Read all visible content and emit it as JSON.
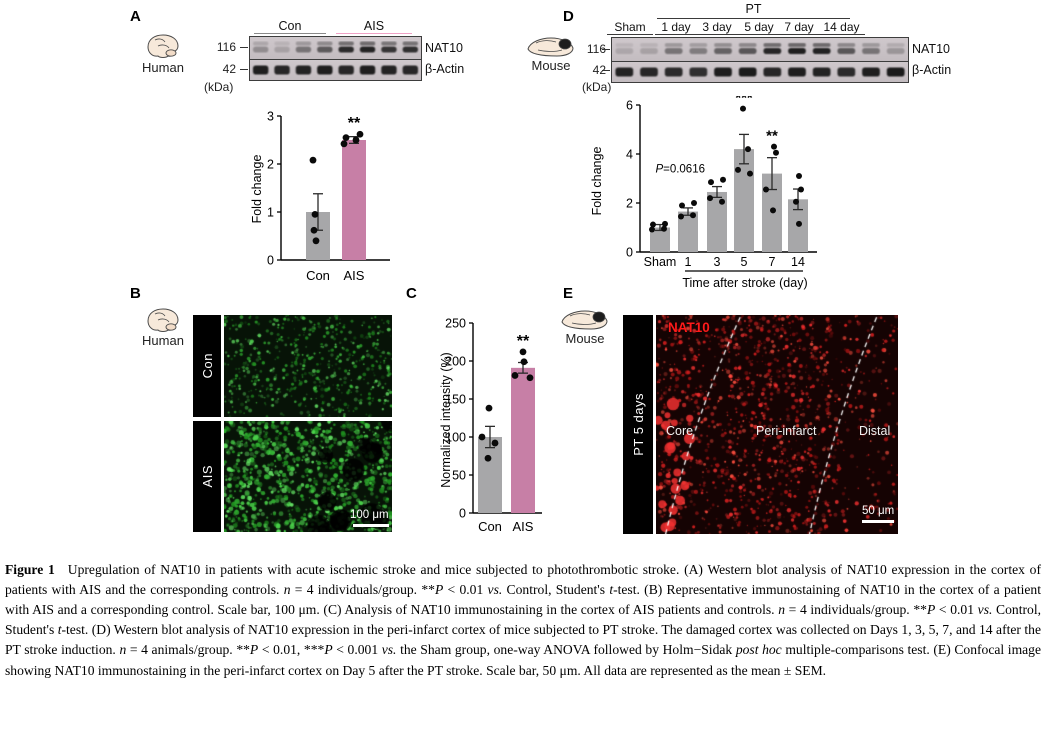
{
  "figure": {
    "panels": {
      "a": {
        "label": "A",
        "species": "Human",
        "blot": {
          "groups": [
            "Con",
            "AIS"
          ],
          "mw": [
            "116",
            "42"
          ],
          "kda": "(kDa)",
          "targets": [
            "NAT10",
            "β-Actin"
          ],
          "nat10_intensities": [
            0.3,
            0.18,
            0.45,
            0.6,
            0.88,
            0.92,
            0.82,
            0.85
          ],
          "actin_intensities": [
            0.95,
            0.9,
            0.92,
            0.95,
            0.9,
            0.95,
            0.92,
            0.9
          ]
        }
      },
      "b": {
        "label": "B",
        "species": "Human",
        "rows": [
          "Con",
          "AIS"
        ],
        "scale_bar": "100 μm",
        "if_bg": "#071307",
        "if_dot_colors": [
          "#2fae2f",
          "#49d049",
          "#1f8f1f",
          "#63e063"
        ]
      },
      "c": {
        "label": "C"
      },
      "d": {
        "label": "D",
        "species": "Mouse",
        "blot": {
          "bracket": "PT",
          "lanes": [
            "Sham",
            "1 day",
            "3 day",
            "5 day",
            "7 day",
            "14 day"
          ],
          "mw": [
            "116",
            "42"
          ],
          "kda": "(kDa)",
          "targets": [
            "NAT10",
            "β-Actin"
          ],
          "nat10_intensities": [
            0.15,
            0.18,
            0.45,
            0.4,
            0.55,
            0.62,
            0.9,
            0.95,
            0.93,
            0.62,
            0.45,
            0.25
          ],
          "actin_intensities": [
            0.92,
            0.9,
            0.88,
            0.85,
            0.95,
            0.97,
            0.9,
            0.95,
            0.92,
            0.88,
            0.95,
            0.97
          ]
        }
      },
      "e": {
        "label": "E",
        "species": "Mouse",
        "row_label": "PT 5 days",
        "stain_label": "NAT10",
        "stain_color": "#ff1a1a",
        "regions": [
          "Core",
          "Peri-infarct",
          "Distal"
        ],
        "scale_bar": "50 μm",
        "if_bg": "#150303",
        "if_dot_colors": [
          "#d61f1f",
          "#f03030",
          "#a81414",
          "#ff5040"
        ]
      }
    },
    "caption": {
      "segments": [
        {
          "t": "Figure 1",
          "b": 1
        },
        {
          "t": "Upregulation of NAT10 in patients with acute ischemic stroke and mice subjected to photothrombotic stroke. (A) Western blot analysis of NAT10 expression in the cortex of patients with AIS and the corresponding controls. "
        },
        {
          "t": "n",
          "i": 1
        },
        {
          "t": " = 4 individuals/group. **"
        },
        {
          "t": "P",
          "i": 1
        },
        {
          "t": " < 0.01 "
        },
        {
          "t": "vs.",
          "i": 1
        },
        {
          "t": " Control, Student's "
        },
        {
          "t": "t",
          "i": 1
        },
        {
          "t": "-test. (B) Representative immunostaining of NAT10 in the cortex of a patient with AIS and a corresponding control. Scale bar, 100 μm. (C) Analysis of NAT10 immunostaining in the cortex of AIS patients and controls. "
        },
        {
          "t": "n",
          "i": 1
        },
        {
          "t": " = 4 individuals/group. **"
        },
        {
          "t": "P",
          "i": 1
        },
        {
          "t": " < 0.01 "
        },
        {
          "t": "vs.",
          "i": 1
        },
        {
          "t": " Control, Student's "
        },
        {
          "t": "t",
          "i": 1
        },
        {
          "t": "-test. (D) Western blot analysis of NAT10 expression in the peri-infarct cortex of mice subjected to PT stroke. The damaged cortex was collected on Days 1, 3, 5, 7, and 14 after the PT stroke induction. "
        },
        {
          "t": "n",
          "i": 1
        },
        {
          "t": " = 4 animals/group. **"
        },
        {
          "t": "P",
          "i": 1
        },
        {
          "t": " < 0.01, ***"
        },
        {
          "t": "P",
          "i": 1
        },
        {
          "t": " < 0.001 "
        },
        {
          "t": "vs.",
          "i": 1
        },
        {
          "t": " the Sham group, one-way ANOVA followed by Holm−Sidak "
        },
        {
          "t": "post hoc",
          "i": 1
        },
        {
          "t": " multiple-comparisons test. (E) Confocal image showing NAT10 immunostaining in the peri-infarct cortex on Day 5 after the PT stroke. Scale bar, 50 μm. All data are represented as the mean ± SEM."
        }
      ]
    }
  },
  "chart_data": [
    {
      "id": "chart-a",
      "type": "bar",
      "title": "",
      "categories": [
        "Con",
        "AIS"
      ],
      "values": [
        1.0,
        2.5
      ],
      "errors": [
        0.38,
        0.07
      ],
      "points": [
        [
          2.08,
          0.95,
          0.62,
          0.4
        ],
        [
          2.55,
          2.62,
          2.42,
          2.5
        ]
      ],
      "sig": [
        "",
        "**"
      ],
      "xlabel": "",
      "ylabel": "Fold change",
      "ylim": [
        0,
        3
      ],
      "yticks": [
        0,
        1,
        2,
        3
      ],
      "bar_colors": [
        "#a7a7a9",
        "#c77fa6"
      ]
    },
    {
      "id": "chart-c",
      "type": "bar",
      "title": "",
      "categories": [
        "Con",
        "AIS"
      ],
      "values": [
        100,
        191
      ],
      "errors": [
        14,
        7
      ],
      "points": [
        [
          138,
          100,
          92,
          72
        ],
        [
          212,
          199,
          181,
          178
        ]
      ],
      "sig": [
        "",
        "**"
      ],
      "xlabel": "",
      "ylabel": "Normalized intensity (%)",
      "ylim": [
        0,
        250
      ],
      "yticks": [
        0,
        50,
        100,
        150,
        200,
        250
      ],
      "bar_colors": [
        "#a7a7a9",
        "#c77fa6"
      ]
    },
    {
      "id": "chart-d",
      "type": "bar",
      "title": "",
      "categories": [
        "Sham",
        "1",
        "3",
        "5",
        "7",
        "14"
      ],
      "values": [
        1.0,
        1.65,
        2.45,
        4.2,
        3.2,
        2.15
      ],
      "errors": [
        0.12,
        0.15,
        0.22,
        0.6,
        0.65,
        0.42
      ],
      "points": [
        [
          1.12,
          1.15,
          0.92,
          0.95
        ],
        [
          1.9,
          2.0,
          1.45,
          1.5
        ],
        [
          2.85,
          2.95,
          2.2,
          2.05
        ],
        [
          5.85,
          4.2,
          3.35,
          3.2
        ],
        [
          4.3,
          4.05,
          2.55,
          1.7
        ],
        [
          3.1,
          2.55,
          2.05,
          1.15
        ]
      ],
      "sig": [
        "",
        "",
        "",
        "***",
        "**",
        ""
      ],
      "annotations": [
        {
          "italic": "P",
          "text": "=0.0616",
          "cat": 2
        }
      ],
      "xlabel": "Time after stroke (day)",
      "ylabel": "Fold change",
      "ylim": [
        0,
        6
      ],
      "yticks": [
        0,
        2,
        4,
        6
      ],
      "bar_colors": [
        "#a7a7a9",
        "#a7a7a9",
        "#a7a7a9",
        "#a7a7a9",
        "#a7a7a9",
        "#a7a7a9"
      ]
    }
  ]
}
